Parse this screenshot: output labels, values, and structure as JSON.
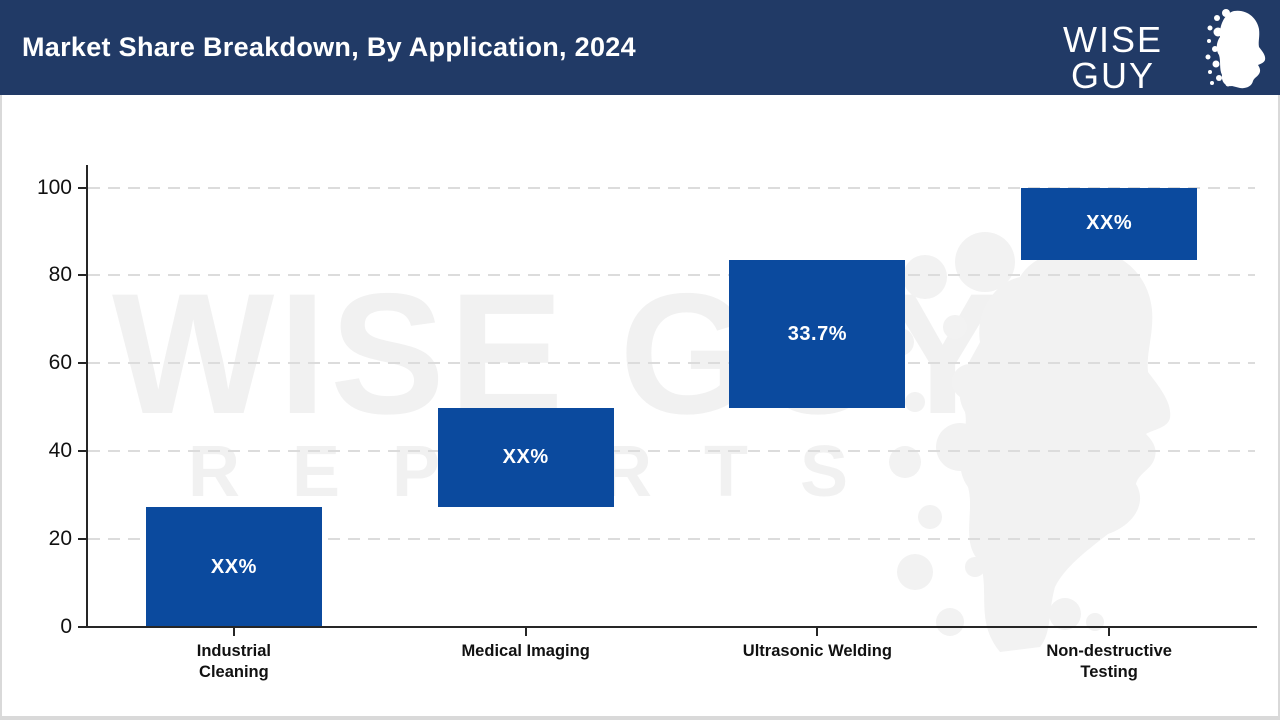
{
  "header": {
    "title": "Market Share Breakdown, By Application, 2024",
    "logo": {
      "line1": "WISE GUY",
      "line2": "REPORTS"
    }
  },
  "watermark": {
    "line1": "WISE GUY",
    "line2": "REPORTS"
  },
  "colors": {
    "header_bg": "#213a66",
    "bar": "#0b4a9e",
    "grid": "#dcdcdc",
    "axis": "#262626",
    "watermark": "#f1f1f1",
    "bar_label": "#ffffff"
  },
  "chart_data": {
    "type": "bar",
    "subtype": "floating-waterfall",
    "title": "Market Share Breakdown, By Application, 2024",
    "xlabel": "",
    "ylabel": "",
    "ylim": [
      0,
      100
    ],
    "yticks": [
      0,
      20,
      40,
      60,
      80,
      100
    ],
    "grid": "horizontal-dashed",
    "legend": "none",
    "categories": [
      "Industrial\nCleaning",
      "Medical Imaging",
      "Ultrasonic Welding",
      "Non-destructive\nTesting"
    ],
    "segments": [
      {
        "category": "Industrial\nCleaning",
        "start": 0,
        "end": 27.3,
        "value": 27.3,
        "value_label": "XX%"
      },
      {
        "category": "Medical Imaging",
        "start": 27.3,
        "end": 49.8,
        "value": 22.5,
        "value_label": "XX%"
      },
      {
        "category": "Ultrasonic Welding",
        "start": 49.8,
        "end": 83.5,
        "value": 33.7,
        "value_label": "33.7%"
      },
      {
        "category": "Non-destructive\nTesting",
        "start": 83.5,
        "end": 100,
        "value": 16.5,
        "value_label": "XX%"
      }
    ]
  }
}
